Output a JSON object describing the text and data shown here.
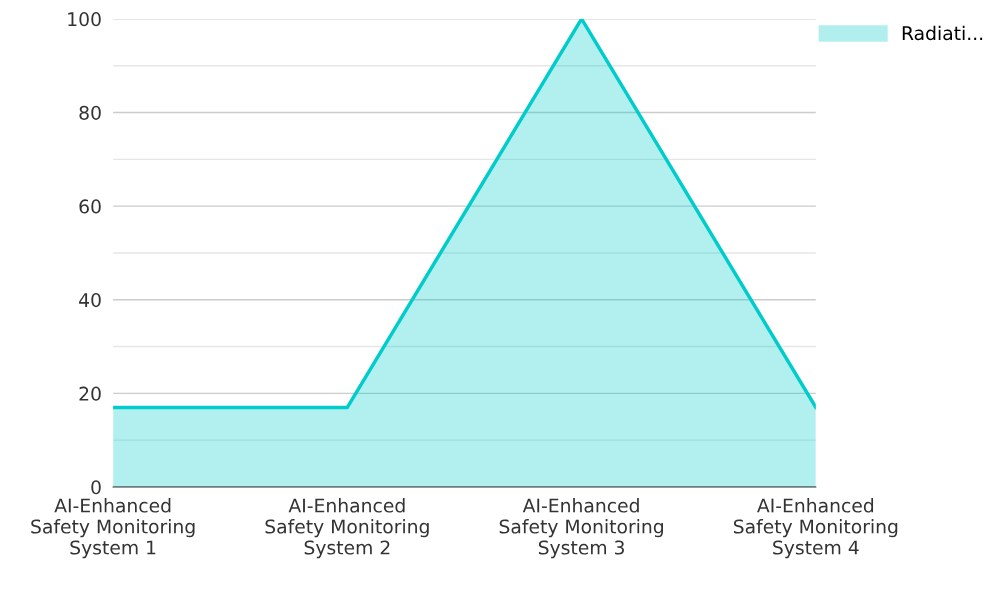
{
  "chart_data": {
    "type": "area",
    "categories": [
      "AI-Enhanced\nSafety Monitoring\nSystem 1",
      "AI-Enhanced\nSafety Monitoring\nSystem 2",
      "AI-Enhanced\nSafety Monitoring\nSystem 3",
      "AI-Enhanced\nSafety Monitoring\nSystem 4"
    ],
    "series": [
      {
        "name": "Radiati...",
        "color": "#00cccc",
        "values": [
          17,
          17,
          100,
          17
        ]
      }
    ],
    "ylim": [
      0,
      100
    ],
    "yticks": [
      0,
      {
        "value": 10,
        "label": null
      },
      20,
      {
        "value": 30,
        "label": null
      },
      40,
      {
        "value": 50,
        "label": null
      },
      60,
      {
        "value": 70,
        "label": null
      },
      80,
      {
        "value": 90,
        "label": null
      },
      100
    ],
    "grid": "y",
    "legend": "top right",
    "marker": "none",
    "line_style": "solid"
  }
}
